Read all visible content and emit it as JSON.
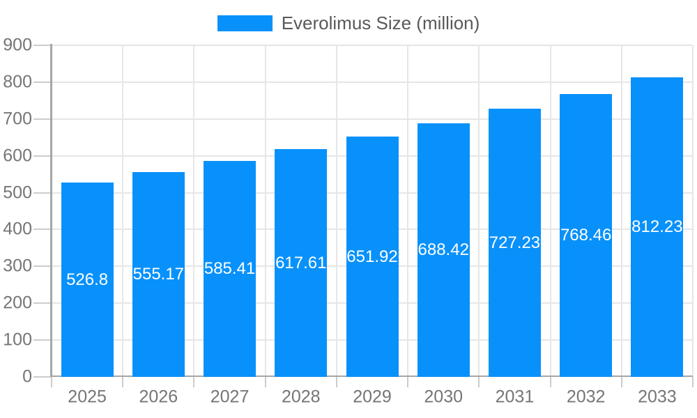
{
  "colors": {
    "bar": "#0991fb",
    "grid": "#e6e6e6",
    "tick": "#cccccc",
    "axis": "#a6a6a6",
    "axis_label": "#757575",
    "legend_text": "#58595b",
    "bar_label": "#ffffff",
    "background": "#ffffff"
  },
  "chart_data": {
    "type": "bar",
    "title": "",
    "legend": [
      "Everolimus Size (million)"
    ],
    "legend_position": "top-center",
    "categories": [
      "2025",
      "2026",
      "2027",
      "2028",
      "2029",
      "2030",
      "2031",
      "2032",
      "2033"
    ],
    "values": [
      526.8,
      555.17,
      585.41,
      617.61,
      651.92,
      688.42,
      727.23,
      768.46,
      812.23
    ],
    "series_name": "Everolimus Size (million)",
    "xlabel": "",
    "ylabel": "",
    "ylim": [
      0,
      900
    ],
    "yticks": [
      0,
      100,
      200,
      300,
      400,
      500,
      600,
      700,
      800,
      900
    ],
    "grid": true,
    "bar_label_position": "inside-center"
  }
}
